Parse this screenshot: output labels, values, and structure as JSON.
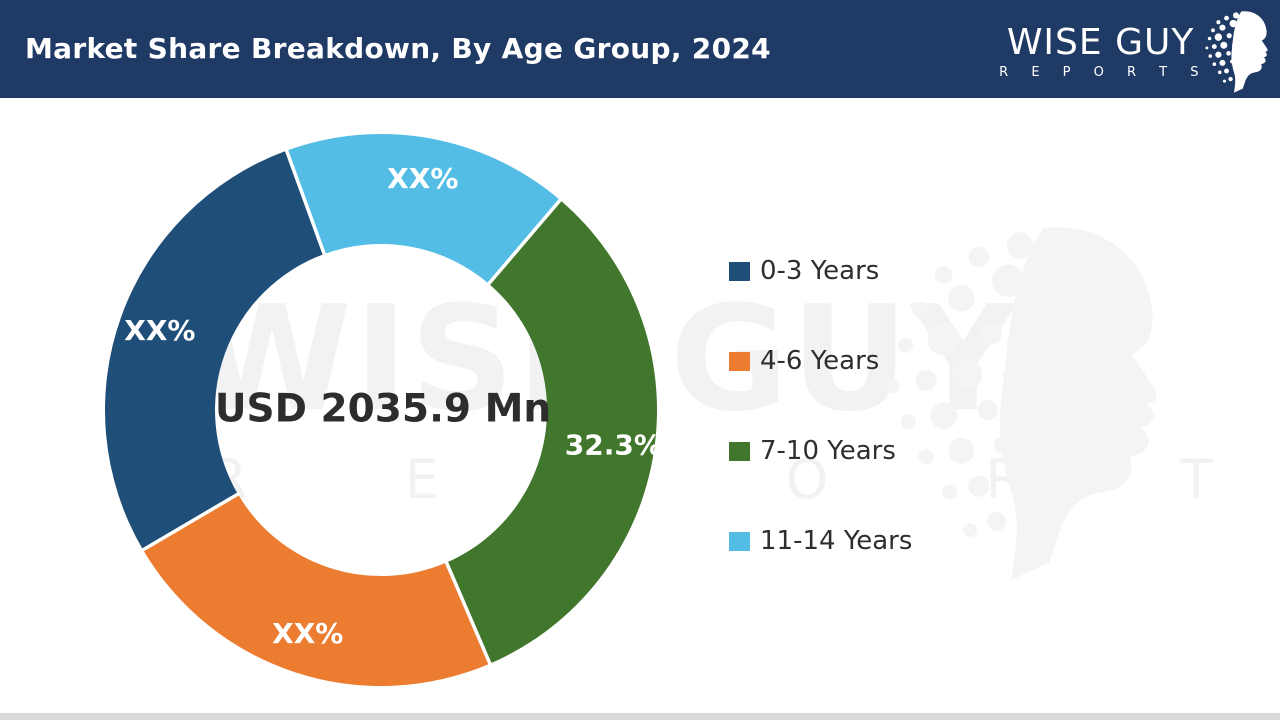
{
  "header": {
    "title": "Market Share Breakdown, By Age Group, 2024",
    "brand": {
      "line1": "WISE GUY",
      "line2": "REPORTS"
    }
  },
  "watermark": {
    "line1": "WISE GUY",
    "line2": "REPORTS"
  },
  "chart_data": {
    "type": "pie",
    "subtype": "donut",
    "title": "Market Share Breakdown, By Age Group, 2024",
    "center_label": "USD 2035.9 Mn",
    "unit": "percent",
    "start_angle_deg": 110,
    "direction": "counterclockwise",
    "legend_position": "right",
    "segments": [
      {
        "label": "0-3 Years",
        "value": 27.9,
        "display": "XX%",
        "color": "#1f4e79"
      },
      {
        "label": "4-6 Years",
        "value": 23.0,
        "display": "XX%",
        "color": "#ec7c30"
      },
      {
        "label": "7-10 Years",
        "value": 32.3,
        "display": "32.3%",
        "color": "#41762d"
      },
      {
        "label": "11-14 Years",
        "value": 16.8,
        "display": "XX%",
        "color": "#54bde6"
      }
    ],
    "colors": {
      "header_bg": "#203a66",
      "center_text": "#2d2d2d",
      "legend_text": "#2e2e2e",
      "watermark": "#f2f2f3",
      "divider": "#ffffff",
      "footer_strip": "#d9d9d9"
    }
  }
}
